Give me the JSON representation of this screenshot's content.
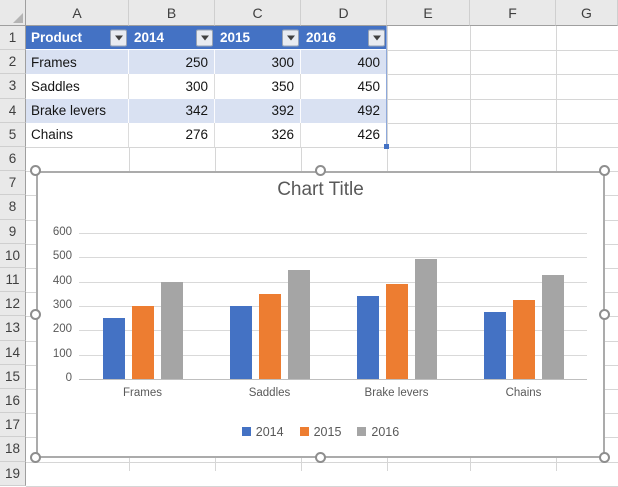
{
  "spreadsheet": {
    "column_headers": [
      "A",
      "B",
      "C",
      "D",
      "E",
      "F",
      "G"
    ],
    "row_headers": [
      "1",
      "2",
      "3",
      "4",
      "5",
      "6",
      "7",
      "8",
      "9",
      "10",
      "11",
      "12",
      "13",
      "14",
      "15",
      "16",
      "17",
      "18",
      "19"
    ],
    "table": {
      "header_row": [
        "Product",
        "2014",
        "2015",
        "2016"
      ],
      "rows": [
        [
          "Frames",
          "250",
          "300",
          "400"
        ],
        [
          "Saddles",
          "300",
          "350",
          "450"
        ],
        [
          "Brake levers",
          "342",
          "392",
          "492"
        ],
        [
          "Chains",
          "276",
          "326",
          "426"
        ]
      ]
    }
  },
  "chart_data": {
    "type": "bar",
    "title": "Chart Title",
    "categories": [
      "Frames",
      "Saddles",
      "Brake levers",
      "Chains"
    ],
    "series": [
      {
        "name": "2014",
        "color": "#4472C4",
        "values": [
          250,
          300,
          342,
          276
        ]
      },
      {
        "name": "2015",
        "color": "#ED7D31",
        "values": [
          300,
          350,
          392,
          326
        ]
      },
      {
        "name": "2016",
        "color": "#A5A5A5",
        "values": [
          400,
          450,
          492,
          426
        ]
      }
    ],
    "yticks": [
      0,
      100,
      200,
      300,
      400,
      500,
      600
    ],
    "ylim": [
      0,
      600
    ],
    "xlabel": "",
    "ylabel": "",
    "grid": true,
    "legend_position": "bottom"
  },
  "colors": {
    "table_header_fill": "#4472C4",
    "table_band_fill": "#D9E1F2",
    "chart_text": "#595959",
    "series_2014": "#4472C4",
    "series_2015": "#ED7D31",
    "series_2016": "#A5A5A5"
  }
}
